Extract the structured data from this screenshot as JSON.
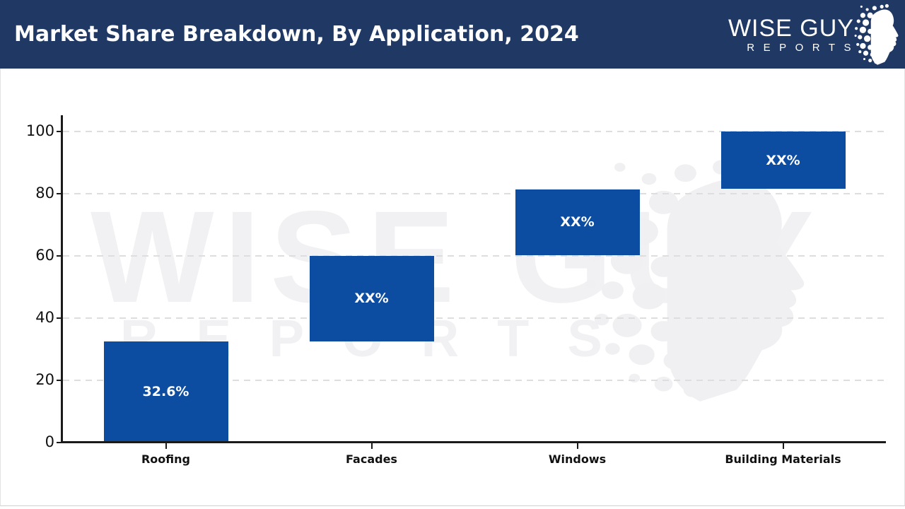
{
  "header": {
    "title": "Market Share Breakdown, By Application, 2024",
    "logo": {
      "name_top": "WISE GUY",
      "name_bottom": "REPORTS",
      "head_icon": "dot-profile-head-icon"
    }
  },
  "watermark": {
    "name_top": "WISE GUY",
    "name_bottom": "REPORTS",
    "head_icon": "dot-profile-head-icon"
  },
  "chart_data": {
    "type": "bar",
    "subtype": "waterfall",
    "title": "Market Share Breakdown, By Application, 2024",
    "categories": [
      "Roofing",
      "Facades",
      "Windows",
      "Building Materials"
    ],
    "segments": [
      {
        "category": "Roofing",
        "start": 0,
        "end": 32.6,
        "label": "32.6%"
      },
      {
        "category": "Facades",
        "start": 32.6,
        "end": 60.0,
        "label": "XX%"
      },
      {
        "category": "Windows",
        "start": 60.3,
        "end": 81.4,
        "label": "XX%"
      },
      {
        "category": "Building Materials",
        "start": 81.5,
        "end": 100,
        "label": "XX%"
      }
    ],
    "ylim": [
      0,
      100
    ],
    "yticks": [
      0,
      20,
      40,
      60,
      80,
      100
    ],
    "xlabel": "",
    "ylabel": "",
    "legend": "none",
    "grid": "horizontal-dashed",
    "bar_color": "#0c4da2",
    "bar_label_color": "#ffffff"
  },
  "colors": {
    "header_bg": "#1f3864",
    "bar": "#0c4da2",
    "bar_label": "#ffffff",
    "grid": "#dedede",
    "axis": "#1a1a1a",
    "watermark": "#f1f1f3"
  }
}
